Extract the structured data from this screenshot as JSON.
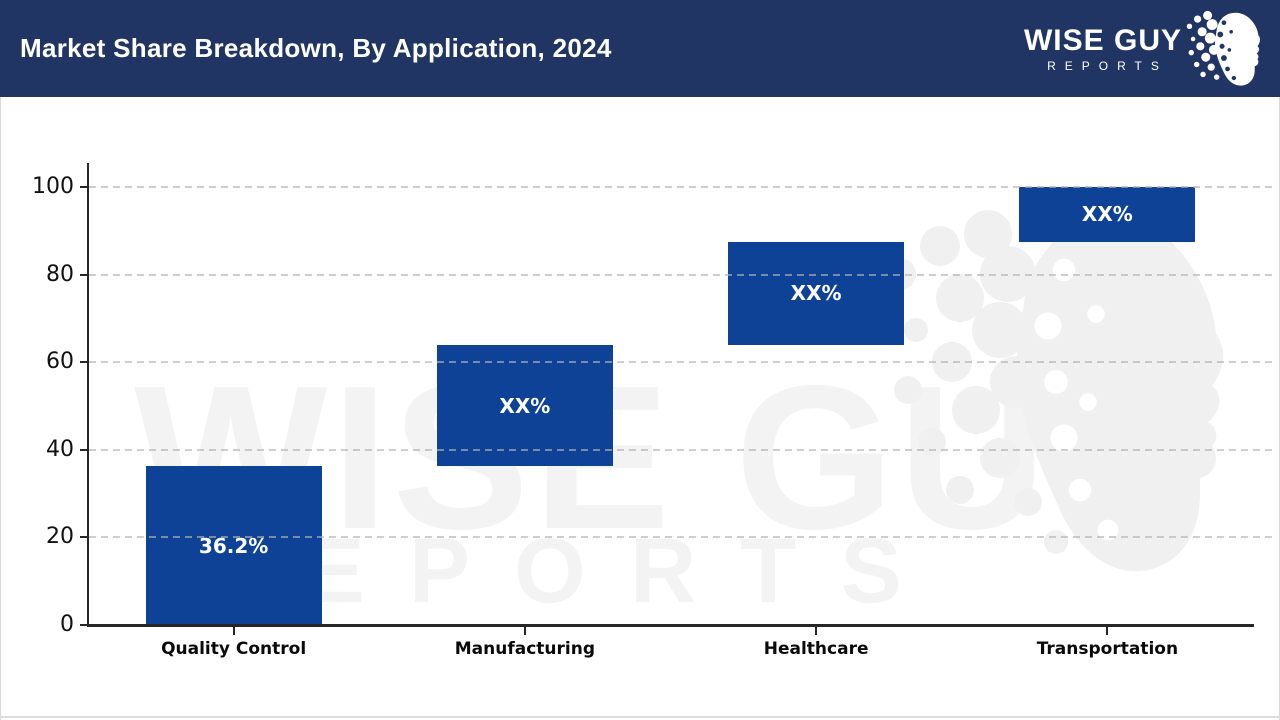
{
  "header": {
    "title": "Market Share Breakdown, By Application, 2024",
    "logo": {
      "line1": "WISE GUY",
      "line2": "REPORTS"
    }
  },
  "watermark": {
    "line1": "WISE GUY",
    "line2": "REPORTS"
  },
  "colors": {
    "header_bg": "#213564",
    "bar": "#0d4296",
    "axis": "#262626",
    "grid": "#b2b2b2",
    "bar_label": "#ffffff",
    "watermark": "#f3f3f3"
  },
  "chart_data": {
    "type": "bar",
    "subtype": "waterfall",
    "title": "Market Share Breakdown, By Application, 2024",
    "xlabel": "",
    "ylabel": "",
    "categories": [
      "Quality Control",
      "Manufacturing",
      "Healthcare",
      "Transportation"
    ],
    "segments": [
      {
        "category": "Quality Control",
        "start": 0,
        "end": 36.2,
        "label": "36.2%"
      },
      {
        "category": "Manufacturing",
        "start": 36.2,
        "end": 64,
        "label": "XX%"
      },
      {
        "category": "Healthcare",
        "start": 64,
        "end": 87.5,
        "label": "XX%"
      },
      {
        "category": "Transportation",
        "start": 87.5,
        "end": 100,
        "label": "XX%"
      }
    ],
    "ylim": [
      0,
      100
    ],
    "yticks": [
      0,
      20,
      40,
      60,
      80,
      100
    ],
    "grid": "horizontal-dashed",
    "legend": "none"
  }
}
